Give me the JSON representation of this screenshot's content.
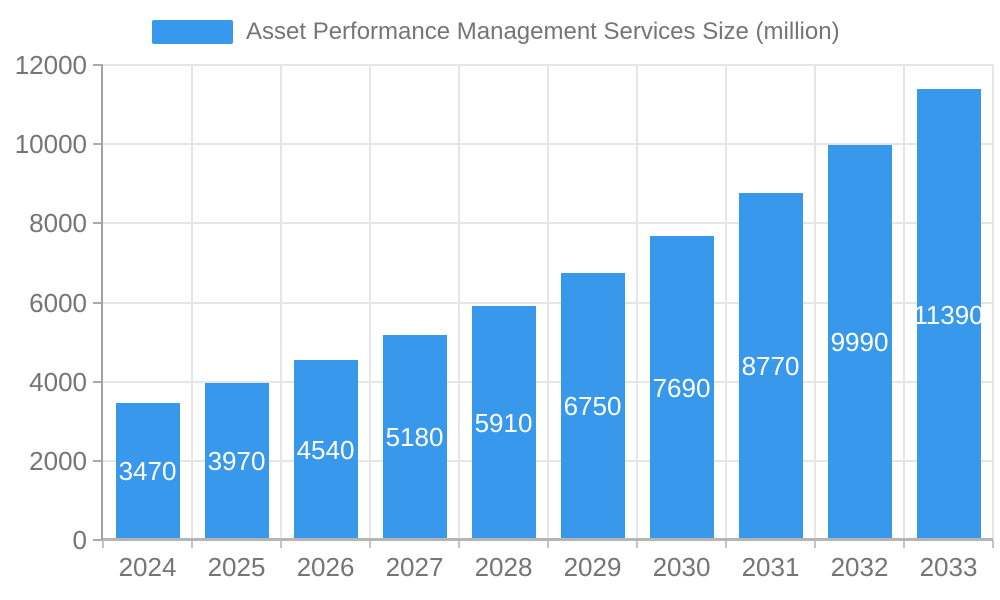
{
  "chart_data": {
    "type": "bar",
    "title": "Asset Performance Management Services Size (million)",
    "categories": [
      "2024",
      "2025",
      "2026",
      "2027",
      "2028",
      "2029",
      "2030",
      "2031",
      "2032",
      "2033"
    ],
    "values": [
      3470,
      3970,
      4540,
      5180,
      5910,
      6750,
      7690,
      8770,
      9990,
      11390
    ],
    "xlabel": "",
    "ylabel": "",
    "ylim": [
      0,
      12000
    ],
    "yticks": [
      0,
      2000,
      4000,
      6000,
      8000,
      10000,
      12000
    ],
    "grid": true,
    "legend_position": "top",
    "bar_color": "#3898ec",
    "value_label_color": "#ffffff",
    "axis_text_color": "#757575",
    "gridline_color": "#e6e6e6"
  }
}
